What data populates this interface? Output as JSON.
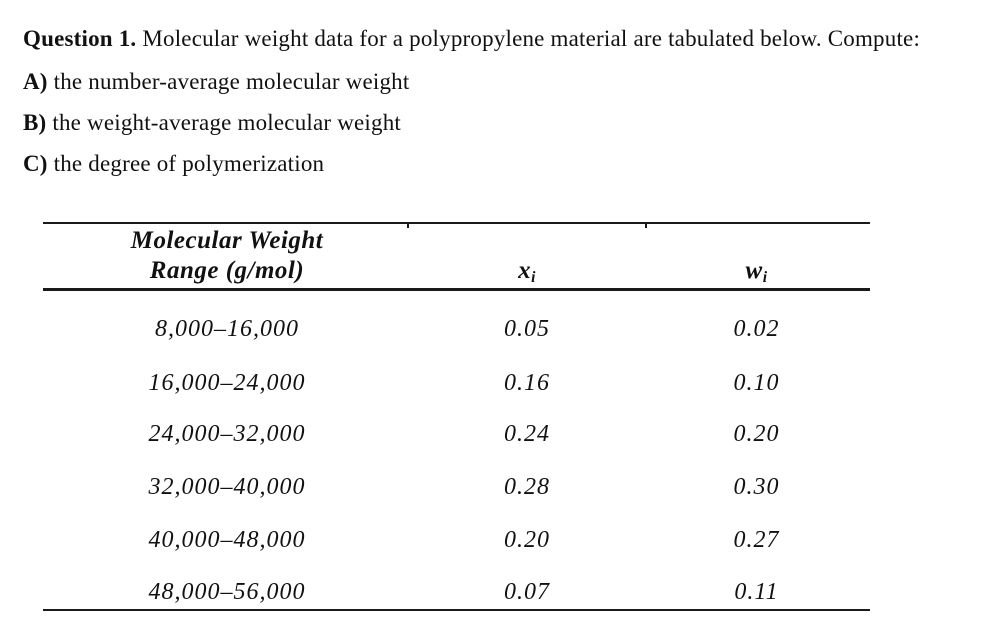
{
  "page": {
    "background": "#ffffff",
    "text_color": "#111111",
    "rule_color": "#1a1a1a"
  },
  "question": {
    "heading_bold": "Question 1.",
    "heading_rest": " Molecular weight data for a polypropylene material are tabulated below. Compute:",
    "items": [
      {
        "label": "A)",
        "text": " the number-average molecular weight"
      },
      {
        "label": "B)",
        "text": " the weight-average molecular weight"
      },
      {
        "label": "C)",
        "text": " the degree of polymerization"
      }
    ]
  },
  "table": {
    "header": {
      "col1_line1": "Molecular Weight",
      "col1_line2": "Range (g/mol)",
      "col2_symbol": "x",
      "col2_subscript": "i",
      "col3_symbol": "w",
      "col3_subscript": "i"
    },
    "rows": [
      {
        "range": "8,000–16,000",
        "xi": "0.05",
        "wi": "0.02"
      },
      {
        "range": "16,000–24,000",
        "xi": "0.16",
        "wi": "0.10"
      },
      {
        "range": "24,000–32,000",
        "xi": "0.24",
        "wi": "0.20"
      },
      {
        "range": "32,000–40,000",
        "xi": "0.28",
        "wi": "0.30"
      },
      {
        "range": "40,000–48,000",
        "xi": "0.20",
        "wi": "0.27"
      },
      {
        "range": "48,000–56,000",
        "xi": "0.07",
        "wi": "0.11"
      }
    ]
  }
}
